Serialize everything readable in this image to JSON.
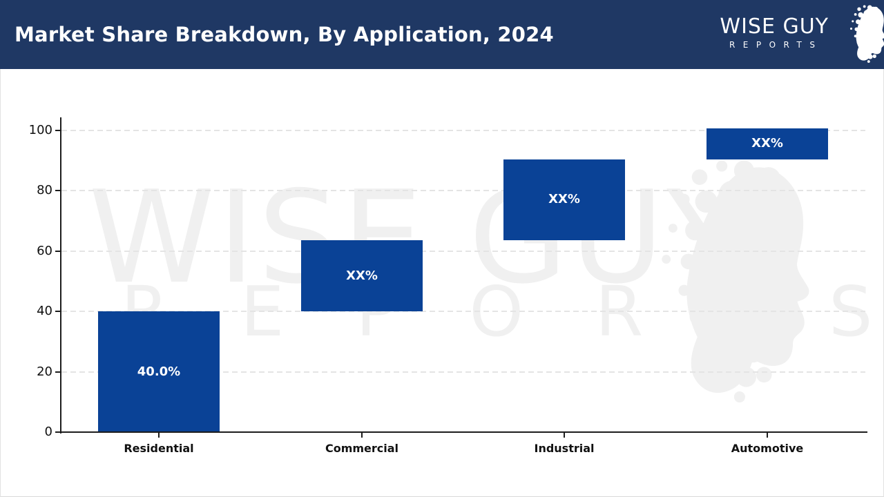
{
  "header": {
    "title": "Market Share Breakdown, By Application, 2024",
    "bg_color": "#1f3864",
    "text_color": "#ffffff",
    "logo": {
      "line1": "WISE GUY",
      "line2": "REPORTS"
    }
  },
  "watermark": {
    "line1": "WISE GUY",
    "line2": "R E P O R T S",
    "color": "#f0f0f0"
  },
  "chart_data": {
    "type": "bar",
    "subtype": "waterfall",
    "title": "Market Share Breakdown, By Application, 2024",
    "categories": [
      "Residential",
      "Commercial",
      "Industrial",
      "Automotive"
    ],
    "segments": [
      {
        "category": "Residential",
        "start": 0,
        "end": 40,
        "label": "40.0%"
      },
      {
        "category": "Commercial",
        "start": 40,
        "end": 63.5,
        "label": "XX%"
      },
      {
        "category": "Industrial",
        "start": 63.5,
        "end": 90.4,
        "label": "XX%"
      },
      {
        "category": "Automotive",
        "start": 90.4,
        "end": 100.6,
        "label": "XX%"
      }
    ],
    "yticks": [
      0,
      20,
      40,
      60,
      80,
      100
    ],
    "ylim": [
      0,
      104.2
    ],
    "xlabel": "",
    "ylabel": "",
    "grid": "horizontal-dashed",
    "legend": "none",
    "bar_color": "#0a4296",
    "bar_label_color": "#ffffff",
    "axis_color": "#1c1c1c",
    "tick_label_color": "#111111",
    "grid_color": "#e4e4e4"
  }
}
